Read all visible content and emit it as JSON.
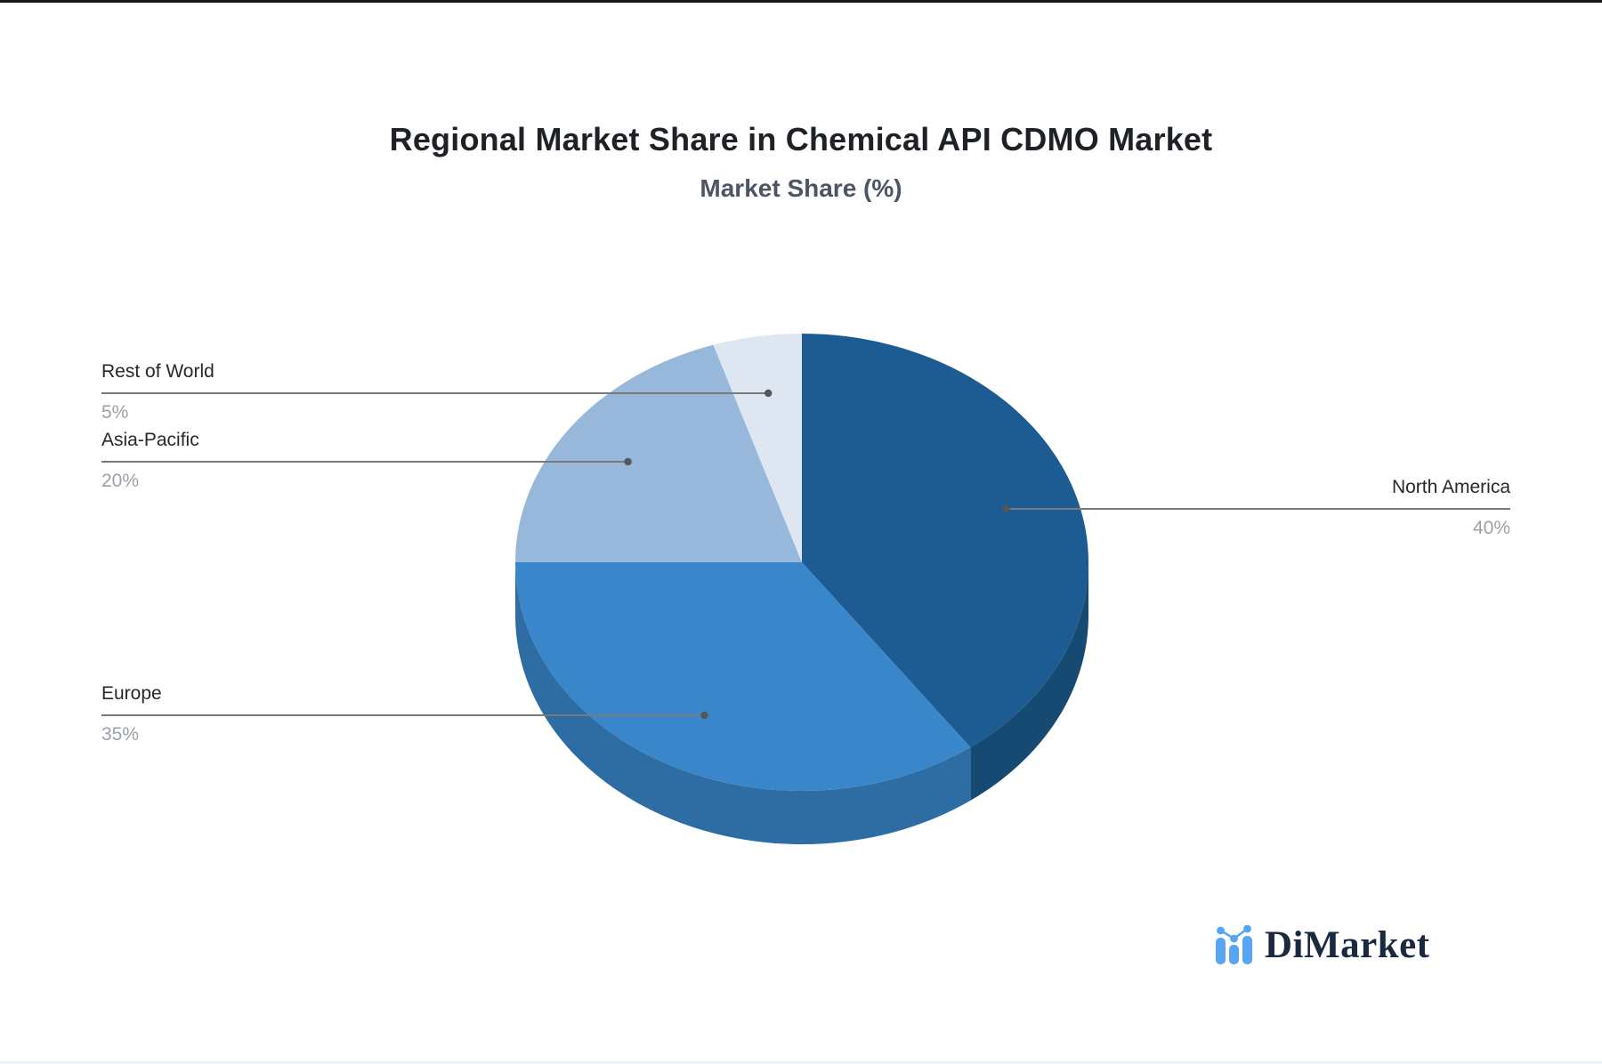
{
  "header": {
    "title": "Regional Market Share in Chemical API CDMO Market",
    "subtitle": "Market Share (%)"
  },
  "chart_data": {
    "type": "pie",
    "style_3d": true,
    "start_angle": "top",
    "direction": "clockwise",
    "title": "Regional Market Share in Chemical API CDMO Market",
    "subtitle": "Market Share (%)",
    "unit": "%",
    "legend_position": "none-outside-connector-labels",
    "connector_color": "#7a7a7a",
    "connector_dot_color": "#54575a",
    "slices": [
      {
        "label": "North America",
        "value": 40,
        "display": "40%",
        "color": "#1d5b93",
        "wall_color": "#164a73",
        "label_side": "right"
      },
      {
        "label": "Europe",
        "value": 35,
        "display": "35%",
        "color": "#3a86ca",
        "wall_color": "#2e6ca4",
        "label_side": "left"
      },
      {
        "label": "Asia-Pacific",
        "value": 20,
        "display": "20%",
        "color": "#97b8db",
        "wall_color": "#97b8db",
        "label_side": "left"
      },
      {
        "label": "Rest of World",
        "value": 5,
        "display": "5%",
        "color": "#dee6f1",
        "wall_color": "#dee6f1",
        "label_side": "left"
      }
    ]
  },
  "logo": {
    "text": "DiMarket",
    "text_color": "#1a2940",
    "icon": "bar-chart-icon",
    "icon_color": "#57a5f3"
  }
}
